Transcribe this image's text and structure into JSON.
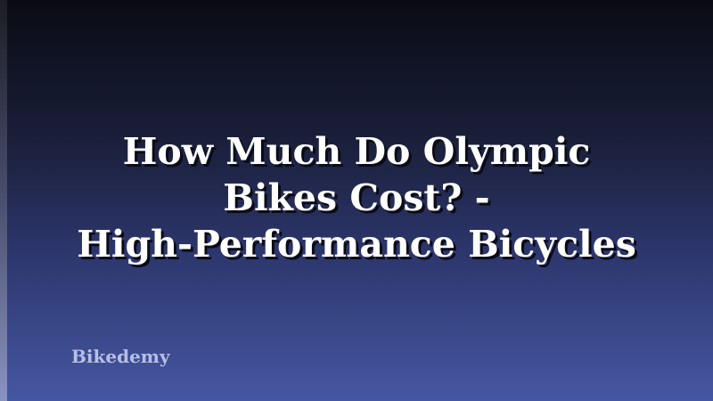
{
  "title_lines": [
    "How Much Do Olympic",
    "Bikes Cost? -",
    "High-Performance Bicycles"
  ],
  "brand": "Bikedemy",
  "colors": {
    "background_top": "#0a0b14",
    "background_bottom": "#4657a2",
    "title": "#ffffff",
    "brand": "#b7bfe6"
  }
}
